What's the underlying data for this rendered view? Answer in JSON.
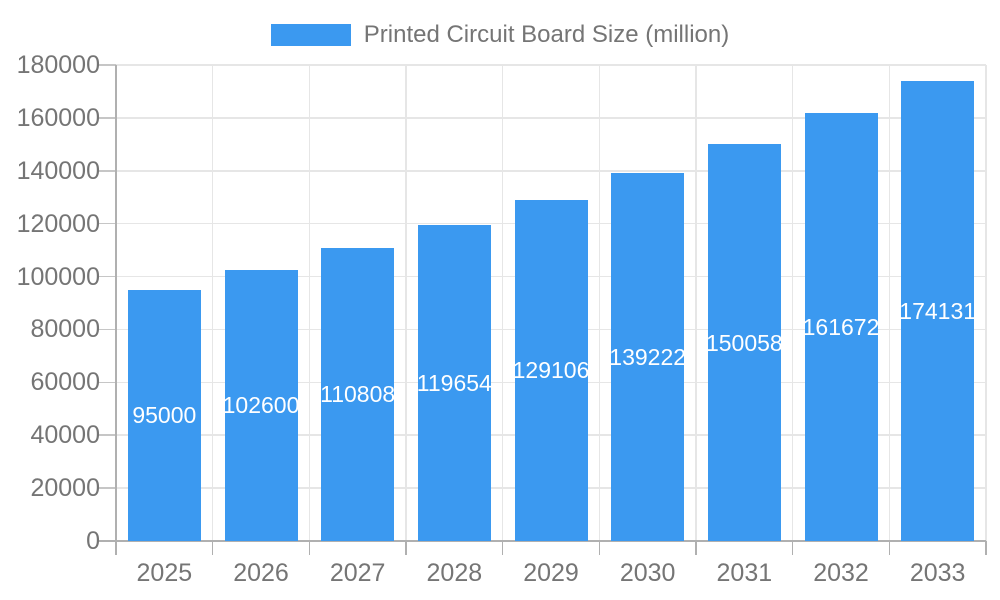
{
  "chart_data": {
    "type": "bar",
    "title": "",
    "xlabel": "",
    "ylabel": "",
    "legend": {
      "label": "Printed Circuit Board Size (million)",
      "position": "top"
    },
    "categories": [
      "2025",
      "2026",
      "2027",
      "2028",
      "2029",
      "2030",
      "2031",
      "2032",
      "2033"
    ],
    "series": [
      {
        "name": "Printed Circuit Board Size (million)",
        "values": [
          95000,
          102600,
          110808,
          119654,
          129106,
          139222,
          150058,
          161672,
          174131
        ]
      }
    ],
    "value_labels": [
      "95000",
      "102600",
      "110808",
      "119654",
      "129106",
      "139222",
      "150058",
      "161672",
      "174131"
    ],
    "ylim": [
      0,
      180000
    ],
    "ytick_step": 20000,
    "ytick_labels": [
      "0",
      "20000",
      "40000",
      "60000",
      "80000",
      "100000",
      "120000",
      "140000",
      "160000",
      "180000"
    ],
    "grid": true,
    "colors": {
      "bar": "#3b99f0",
      "grid": "#e6e6e6",
      "axis_line": "#b0b0b0",
      "tick": "#c6c6c6",
      "text": "#757575",
      "value_label": "#ffffff",
      "background": "#ffffff"
    }
  }
}
